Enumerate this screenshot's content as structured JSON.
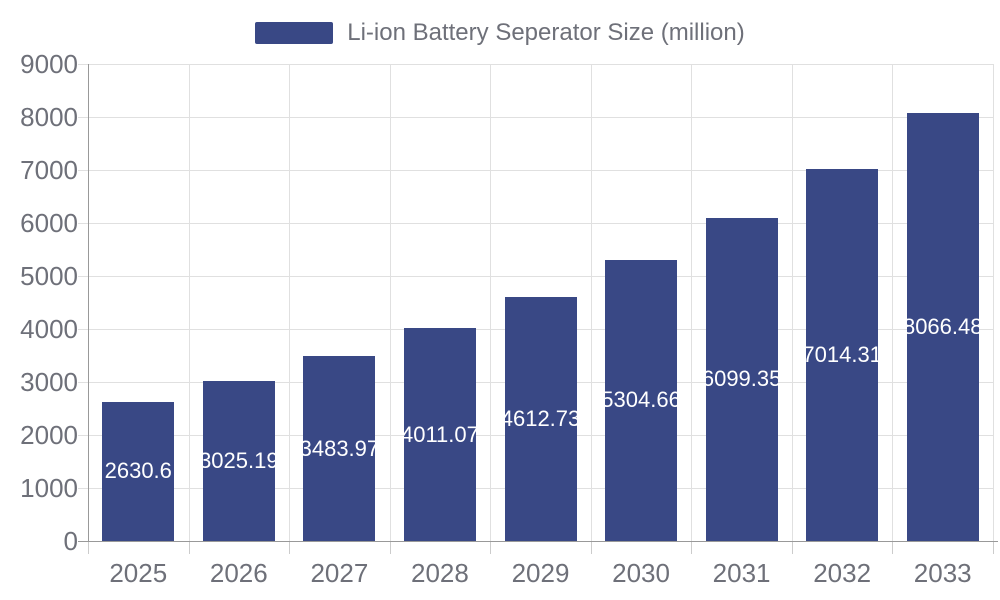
{
  "legend": {
    "label": "Li-ion Battery Seperator Size (million)"
  },
  "chart_data": {
    "type": "bar",
    "title": "Li-ion Battery Seperator Size (million)",
    "categories": [
      "2025",
      "2026",
      "2027",
      "2028",
      "2029",
      "2030",
      "2031",
      "2032",
      "2033"
    ],
    "values": [
      2630.6,
      3025.19,
      3483.97,
      4011.07,
      4612.73,
      5304.66,
      6099.35,
      7014.31,
      8066.48
    ],
    "bar_labels": [
      "2630.6",
      "3025.19",
      "3483.97",
      "4011.07",
      "4612.73",
      "5304.66",
      "6099.35",
      "7014.31",
      "8066.48"
    ],
    "xlabel": "",
    "ylabel": "",
    "ylim": [
      0,
      9000
    ],
    "ytick_step": 1000,
    "grid": true,
    "legend_position": "top",
    "bar_label_position": "inside-center",
    "colors": {
      "bar": "#394885",
      "axis_text": "#6E7079",
      "bar_label_text": "#ffffff",
      "gridline": "#e0e0e0",
      "axis_line": "#999999",
      "tick": "#cccccc"
    }
  }
}
